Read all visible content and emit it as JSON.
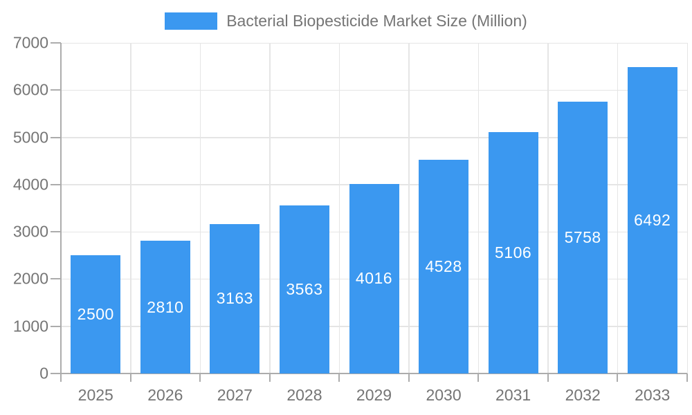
{
  "chart_data": {
    "type": "bar",
    "title": "",
    "legend": "Bacterial Biopesticide Market Size (Million)",
    "legend_position": "top-center",
    "categories": [
      "2025",
      "2026",
      "2027",
      "2028",
      "2029",
      "2030",
      "2031",
      "2032",
      "2033"
    ],
    "values": [
      2500,
      2810,
      3163,
      3563,
      4016,
      4528,
      5106,
      5758,
      6492
    ],
    "bar_labels_shown": true,
    "xlabel": "",
    "ylabel": "",
    "ylim": [
      0,
      7000
    ],
    "yticks": [
      0,
      1000,
      2000,
      3000,
      4000,
      5000,
      6000,
      7000
    ],
    "grid": true,
    "colors": {
      "bar": "#3B98F0",
      "bar_label_text": "#FFFFFF",
      "axis_text": "#757575",
      "gridline": "#E5E5E5",
      "axis_line": "#ACACAC"
    }
  }
}
